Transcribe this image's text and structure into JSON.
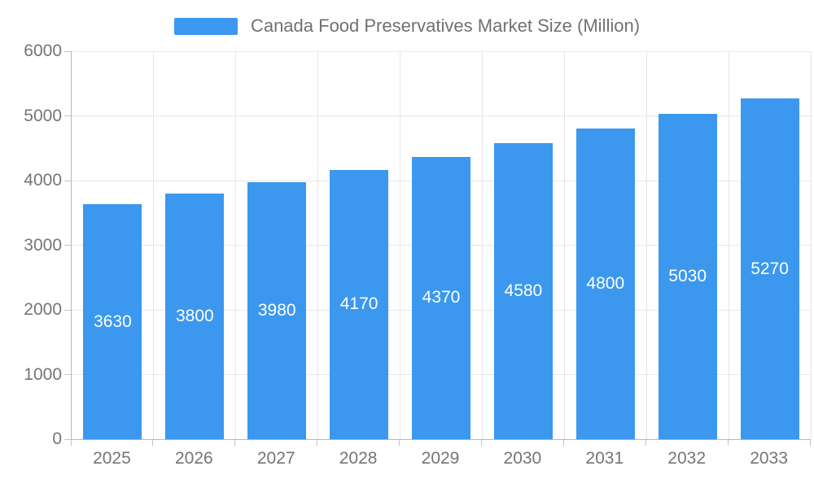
{
  "chart_data": {
    "type": "bar",
    "title": "Canada Food Preservatives Market Size (Million)",
    "categories": [
      "2025",
      "2026",
      "2027",
      "2028",
      "2029",
      "2030",
      "2031",
      "2032",
      "2033"
    ],
    "values": [
      3630,
      3800,
      3980,
      4170,
      4370,
      4580,
      4800,
      5030,
      5270
    ],
    "xlabel": "",
    "ylabel": "",
    "ylim": [
      0,
      6000
    ],
    "ytick_interval": 1000,
    "grid": true,
    "legend_position": "top-center",
    "value_labels": "inside-center",
    "colors": {
      "bar": "#3b98ee",
      "bar_label_text": "#ffffff",
      "axis_text": "#757575",
      "legend_text": "#717171",
      "grid_line": "#e6e6e6",
      "axis_line": "#b6b6b6",
      "tick_mark": "#c4c4c4",
      "background": "#ffffff"
    }
  }
}
